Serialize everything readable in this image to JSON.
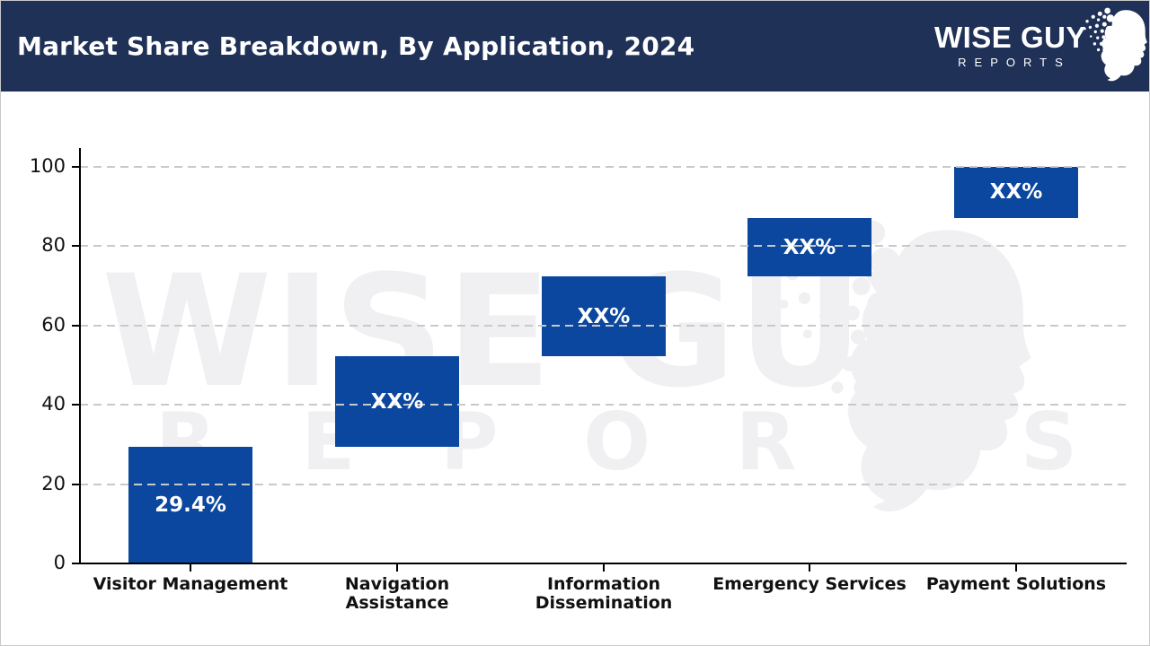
{
  "header": {
    "title": "Market Share Breakdown, By Application, 2024",
    "logo": {
      "line1": "WISE GUY",
      "line2": "REPORTS"
    }
  },
  "watermark": {
    "line1": "WISE GUY",
    "line2": "R E P O R T S"
  },
  "colors": {
    "header_bg": "#203158",
    "bar": "#0b479f",
    "watermark": "#f0f0f3",
    "gridline": "#c9c9c9",
    "axis": "#000000",
    "canvas_border": "#c9c9c9",
    "bar_label_text": "#ffffff"
  },
  "chart_data": {
    "type": "bar",
    "subtype": "waterfall-floating-bars",
    "title": "Market Share Breakdown, By Application, 2024",
    "categories": [
      "Visitor Management",
      "Navigation\nAssistance",
      "Information\nDissemination",
      "Emergency Services",
      "Payment Solutions"
    ],
    "series": [
      {
        "name": "Market share (%)",
        "segments": [
          {
            "category": "Visitor Management",
            "start": 0,
            "end": 29.4,
            "label": "29.4%"
          },
          {
            "category": "Navigation Assistance",
            "start": 29.4,
            "end": 52.1,
            "label": "XX%"
          },
          {
            "category": "Information Dissemination",
            "start": 52.1,
            "end": 72.3,
            "label": "XX%"
          },
          {
            "category": "Emergency Services",
            "start": 72.3,
            "end": 87.0,
            "label": "XX%"
          },
          {
            "category": "Payment Solutions",
            "start": 87.0,
            "end": 100.0,
            "label": "XX%"
          }
        ]
      }
    ],
    "xlabel": "",
    "ylabel": "",
    "yticks": [
      0,
      20,
      40,
      60,
      80,
      100
    ],
    "ylim": [
      0,
      105
    ],
    "grid": "horizontal dashed, drawn over bars",
    "legend": "none"
  }
}
